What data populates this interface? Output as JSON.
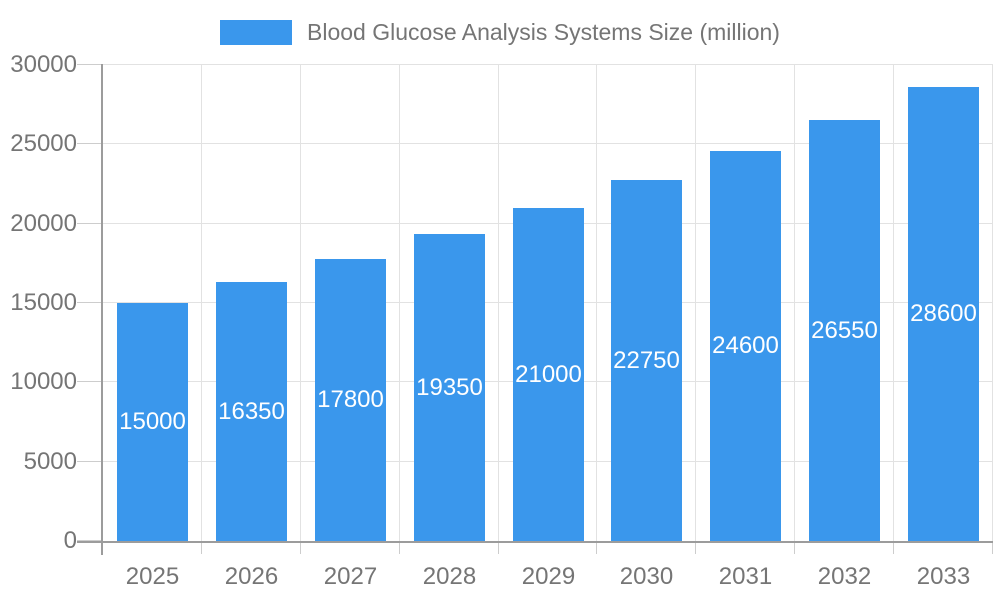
{
  "chart_data": {
    "type": "bar",
    "title": "Blood Glucose Analysis Systems Size (million)",
    "legend": {
      "label": "Blood Glucose Analysis Systems Size (million)",
      "position": "top-center"
    },
    "categories": [
      "2025",
      "2026",
      "2027",
      "2028",
      "2029",
      "2030",
      "2031",
      "2032",
      "2033"
    ],
    "values": [
      15000,
      16350,
      17800,
      19350,
      21000,
      22750,
      24600,
      26550,
      28600
    ],
    "bar_value_labels": [
      "15000",
      "16350",
      "17800",
      "19350",
      "21000",
      "22750",
      "24600",
      "26550",
      "28600"
    ],
    "xlabel": "",
    "ylabel": "",
    "ylim": [
      0,
      30000
    ],
    "y_ticks": [
      0,
      5000,
      10000,
      15000,
      20000,
      25000,
      30000
    ],
    "y_tick_labels": [
      "0",
      "5000",
      "10000",
      "15000",
      "20000",
      "25000",
      "30000"
    ],
    "grid": true,
    "colors": {
      "bar": "#3A97EC",
      "bar_label": "#FFFFFF",
      "axis_line": "#9C9C9C",
      "grid_line": "#E2E2E2",
      "tick_line": "#CDCDCD",
      "axis_text": "#757575",
      "background": "#FFFFFF"
    }
  }
}
